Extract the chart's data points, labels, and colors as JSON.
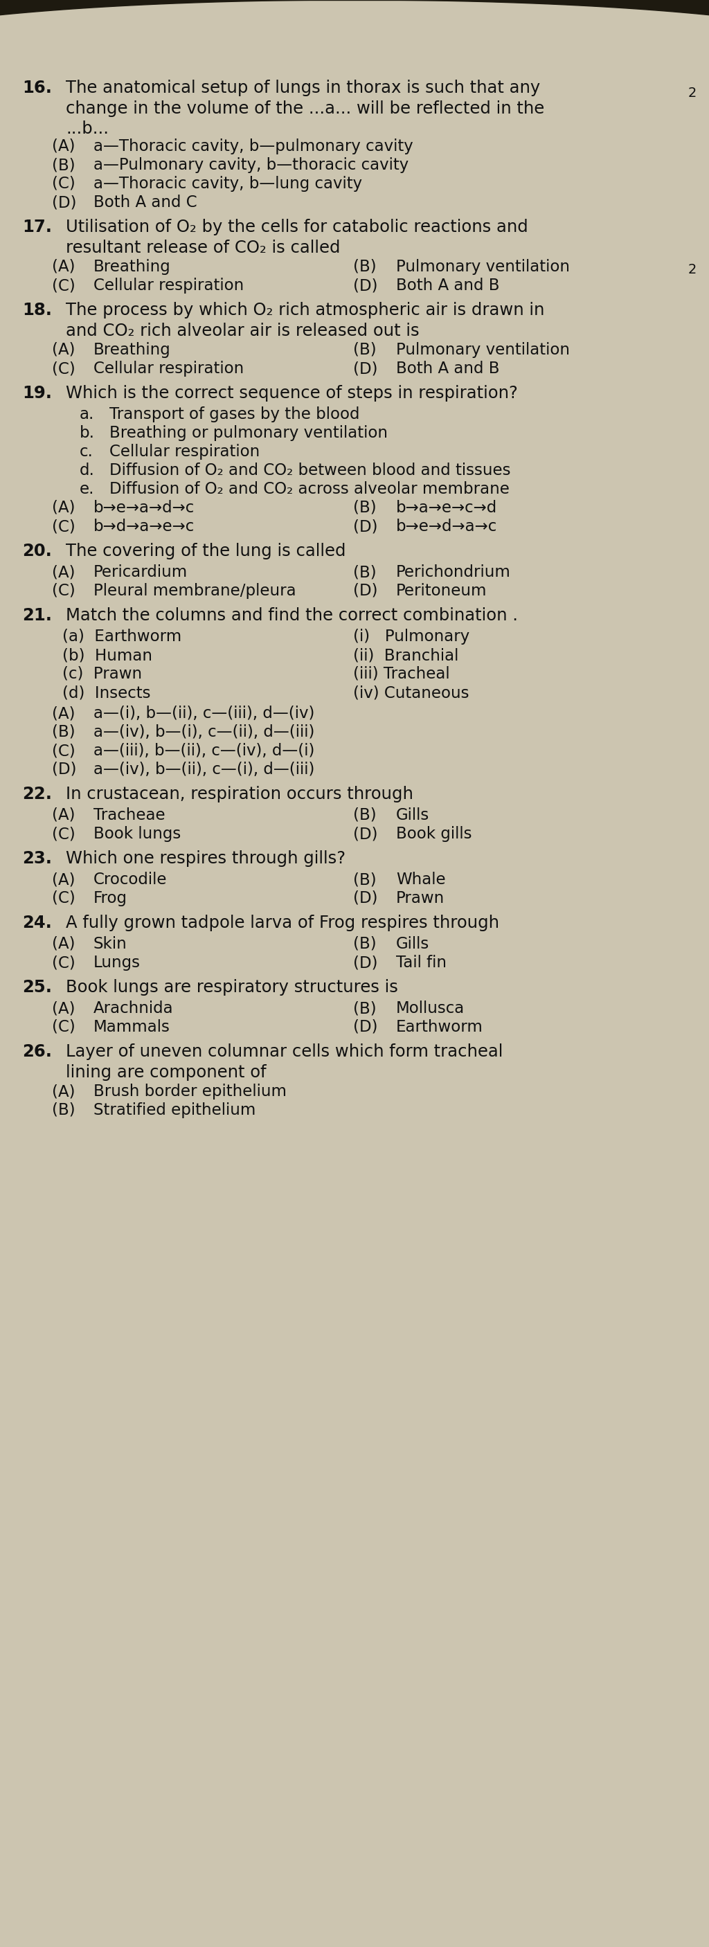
{
  "bg_color": "#ccc5b0",
  "text_color": "#111111",
  "lines": [
    {
      "type": "question",
      "num": "16.",
      "text": "The anatomical setup of lungs in thorax is such that any\nchange in the volume of the ...a... will be reflected in the\n...b..."
    },
    {
      "type": "option",
      "label": "(A)",
      "text": "a—Thoracic cavity, b—pulmonary cavity"
    },
    {
      "type": "option",
      "label": "(B)",
      "text": "a—Pulmonary cavity, b—thoracic cavity"
    },
    {
      "type": "option",
      "label": "(C)",
      "text": "a—Thoracic cavity, b—lung cavity"
    },
    {
      "type": "option",
      "label": "(D)",
      "text": "Both A and C"
    },
    {
      "type": "question",
      "num": "17.",
      "text": "Utilisation of O₂ by the cells for catabolic reactions and\nresultant release of CO₂ is called"
    },
    {
      "type": "option2col",
      "A_label": "(A)",
      "A_text": "Breathing",
      "B_label": "(B)",
      "B_text": "Pulmonary ventilation"
    },
    {
      "type": "option2col",
      "A_label": "(C)",
      "A_text": "Cellular respiration",
      "B_label": "(D)",
      "B_text": "Both A and B"
    },
    {
      "type": "question",
      "num": "18.",
      "text": "The process by which O₂ rich atmospheric air is drawn in\nand CO₂ rich alveolar air is released out is"
    },
    {
      "type": "option2col",
      "A_label": "(A)",
      "A_text": "Breathing",
      "B_label": "(B)",
      "B_text": "Pulmonary ventilation"
    },
    {
      "type": "option2col",
      "A_label": "(C)",
      "A_text": "Cellular respiration",
      "B_label": "(D)",
      "B_text": "Both A and B"
    },
    {
      "type": "question",
      "num": "19.",
      "text": "Which is the correct sequence of steps in respiration?"
    },
    {
      "type": "subitem",
      "label": "a.",
      "text": "Transport of gases by the blood"
    },
    {
      "type": "subitem",
      "label": "b.",
      "text": "Breathing or pulmonary ventilation"
    },
    {
      "type": "subitem",
      "label": "c.",
      "text": "Cellular respiration"
    },
    {
      "type": "subitem",
      "label": "d.",
      "text": "Diffusion of O₂ and CO₂ between blood and tissues"
    },
    {
      "type": "subitem",
      "label": "e.",
      "text": "Diffusion of O₂ and CO₂ across alveolar membrane"
    },
    {
      "type": "option2col",
      "A_label": "(A)",
      "A_text": "b→e→a→d→c",
      "B_label": "(B)",
      "B_text": "b→a→e→c→d"
    },
    {
      "type": "option2col",
      "A_label": "(C)",
      "A_text": "b→d→a→e→c",
      "B_label": "(D)",
      "B_text": "b→e→d→a→c"
    },
    {
      "type": "question",
      "num": "20.",
      "text": "The covering of the lung is called"
    },
    {
      "type": "option2col",
      "A_label": "(A)",
      "A_text": "Pericardium",
      "B_label": "(B)",
      "B_text": "Perichondrium"
    },
    {
      "type": "option2col",
      "A_label": "(C)",
      "A_text": "Pleural membrane/pleura",
      "B_label": "(D)",
      "B_text": "Peritoneum"
    },
    {
      "type": "question",
      "num": "21.",
      "text": "Match the columns and find the correct combination ."
    },
    {
      "type": "matchtable",
      "left": [
        "(a)  Earthworm",
        "(b)  Human",
        "(c)  Prawn",
        "(d)  Insects"
      ],
      "right": [
        "(i)   Pulmonary",
        "(ii)  Branchial",
        "(iii) Tracheal",
        "(iv) Cutaneous"
      ]
    },
    {
      "type": "option",
      "label": "(A)",
      "text": "a—(i), b—(ii), c—(iii), d—(iv)"
    },
    {
      "type": "option",
      "label": "(B)",
      "text": "a—(iv), b—(i), c—(ii), d—(iii)"
    },
    {
      "type": "option",
      "label": "(C)",
      "text": "a—(iii), b—(ii), c—(iv), d—(i)"
    },
    {
      "type": "option",
      "label": "(D)",
      "text": "a—(iv), b—(ii), c—(i), d—(iii)"
    },
    {
      "type": "question",
      "num": "22.",
      "text": "In crustacean, respiration occurs through"
    },
    {
      "type": "option2col",
      "A_label": "(A)",
      "A_text": "Tracheae",
      "B_label": "(B)",
      "B_text": "Gills"
    },
    {
      "type": "option2col",
      "A_label": "(C)",
      "A_text": "Book lungs",
      "B_label": "(D)",
      "B_text": "Book gills"
    },
    {
      "type": "question",
      "num": "23.",
      "text": "Which one respires through gills?"
    },
    {
      "type": "option2col",
      "A_label": "(A)",
      "A_text": "Crocodile",
      "B_label": "(B)",
      "B_text": "Whale"
    },
    {
      "type": "option2col",
      "A_label": "(C)",
      "A_text": "Frog",
      "B_label": "(D)",
      "B_text": "Prawn"
    },
    {
      "type": "question",
      "num": "24.",
      "text": "A fully grown tadpole larva of Frog respires through"
    },
    {
      "type": "option2col",
      "A_label": "(A)",
      "A_text": "Skin",
      "B_label": "(B)",
      "B_text": "Gills"
    },
    {
      "type": "option2col",
      "A_label": "(C)",
      "A_text": "Lungs",
      "B_label": "(D)",
      "B_text": "Tail fin"
    },
    {
      "type": "question",
      "num": "25.",
      "text": "Book lungs are respiratory structures is"
    },
    {
      "type": "option2col",
      "A_label": "(A)",
      "A_text": "Arachnida",
      "B_label": "(B)",
      "B_text": "Mollusca"
    },
    {
      "type": "option2col",
      "A_label": "(C)",
      "A_text": "Mammals",
      "B_label": "(D)",
      "B_text": "Earthworm"
    },
    {
      "type": "question",
      "num": "26.",
      "text": "Layer of uneven columnar cells which form tracheal\nlining are component of"
    },
    {
      "type": "option",
      "label": "(A)",
      "text": "Brush border epithelium"
    },
    {
      "type": "option",
      "label": "(B)",
      "text": "Stratified epithelium"
    }
  ],
  "page_num_right": "2",
  "page_num_right2": "2"
}
